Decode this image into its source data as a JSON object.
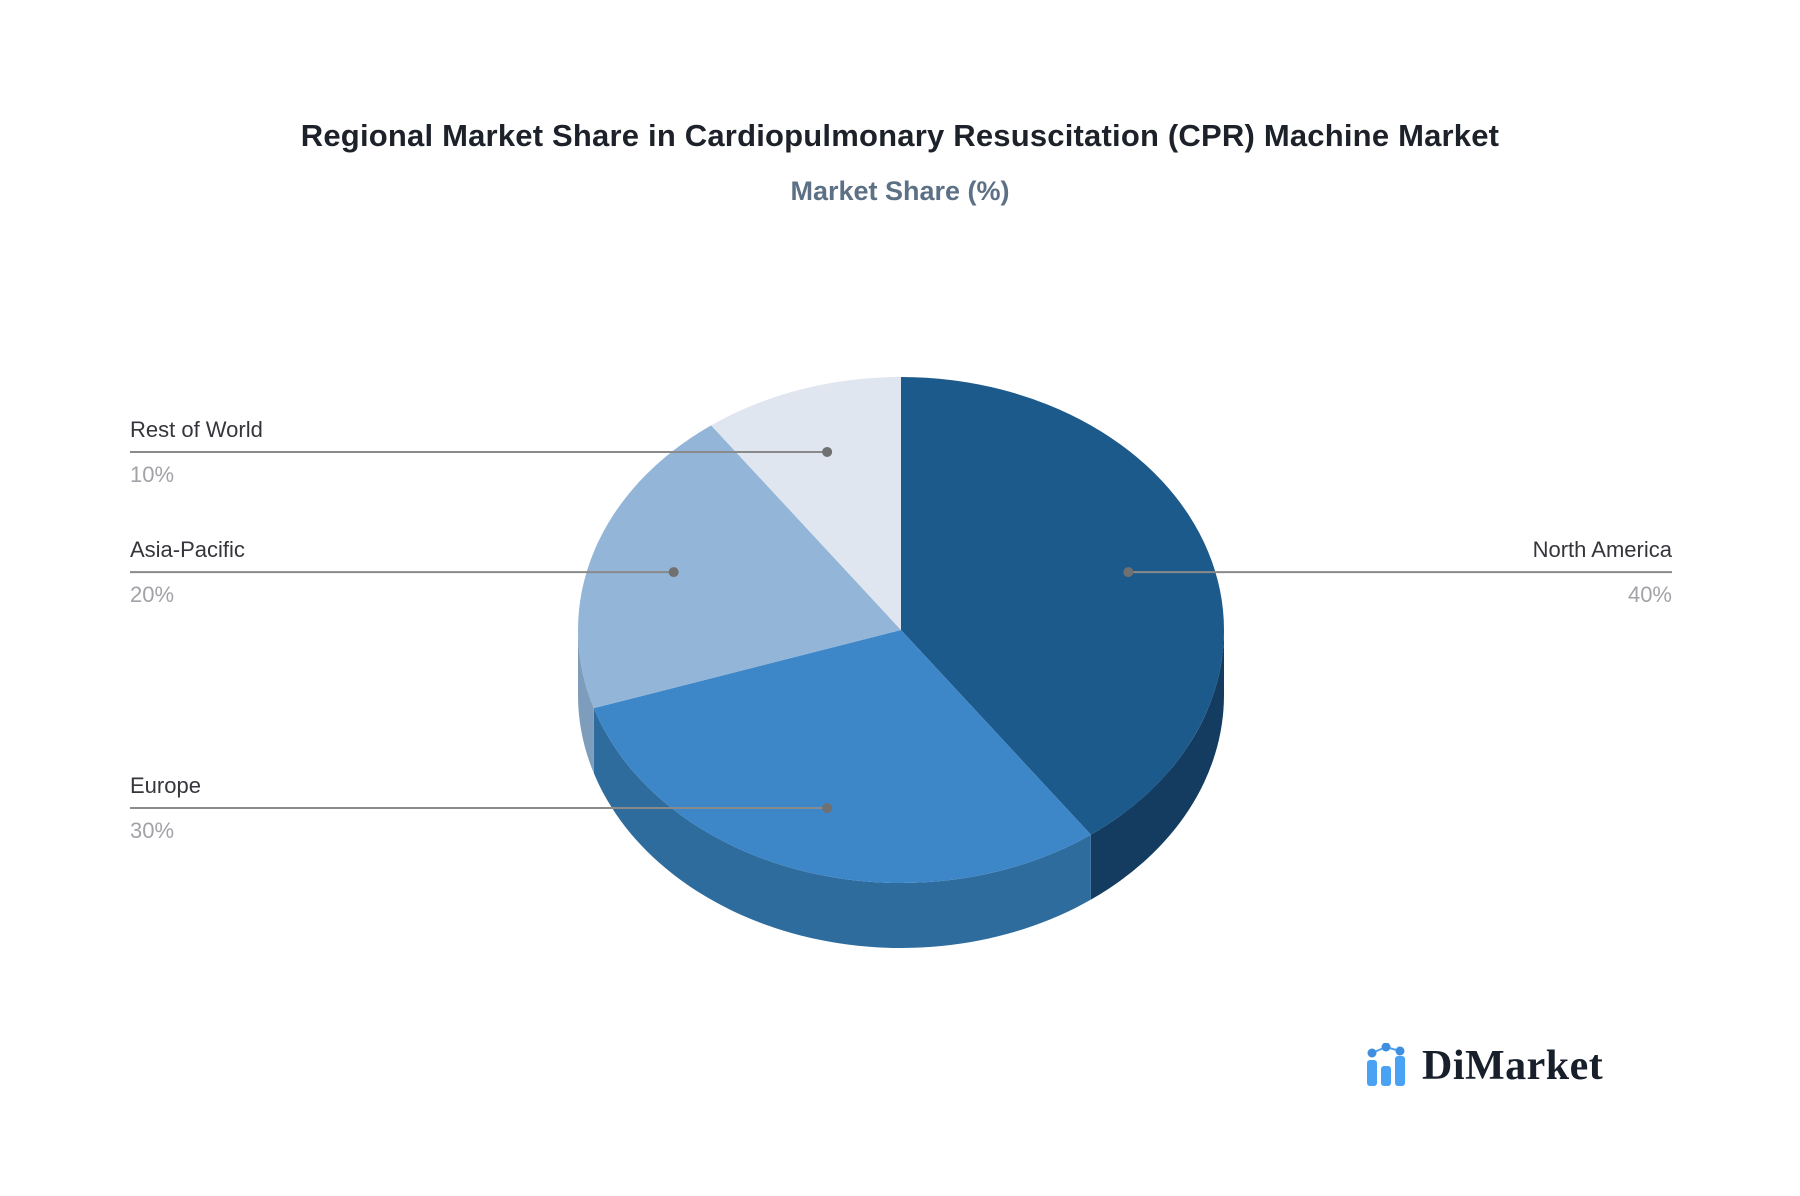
{
  "header": {
    "title": "Regional Market Share in Cardiopulmonary Resuscitation (CPR) Machine Market",
    "subtitle": "Market Share (%)"
  },
  "logo": {
    "text": "DiMarket",
    "icon": "bar-chart-logo-icon",
    "icon_color": "#4aa2f5",
    "text_color": "#171f2b"
  },
  "chart_data": {
    "type": "pie",
    "style": "3d",
    "title": "Regional Market Share in Cardiopulmonary Resuscitation (CPR) Machine Market",
    "subtitle": "Market Share (%)",
    "unit": "%",
    "start_angle_deg": 0,
    "direction": "clockwise",
    "legend_position": "callout-labels",
    "slices": [
      {
        "label": "North America",
        "value": 40,
        "pct_text": "40%",
        "color": "#1d5a8c",
        "side_color": "#133c60"
      },
      {
        "label": "Europe",
        "value": 30,
        "pct_text": "30%",
        "color": "#3d87c9",
        "side_color": "#2e6c9e"
      },
      {
        "label": "Asia-Pacific",
        "value": 20,
        "pct_text": "20%",
        "color": "#93b5d8",
        "side_color": "#7e9cbb"
      },
      {
        "label": "Rest of World",
        "value": 10,
        "pct_text": "10%",
        "color": "#dfe6f0",
        "side_color": "#c2cfdf"
      }
    ],
    "label_name_color": "#35353c",
    "label_pct_color": "#a2a2a8",
    "leader_line_color": "#8a8a8a",
    "leader_dot_color": "#707070"
  }
}
